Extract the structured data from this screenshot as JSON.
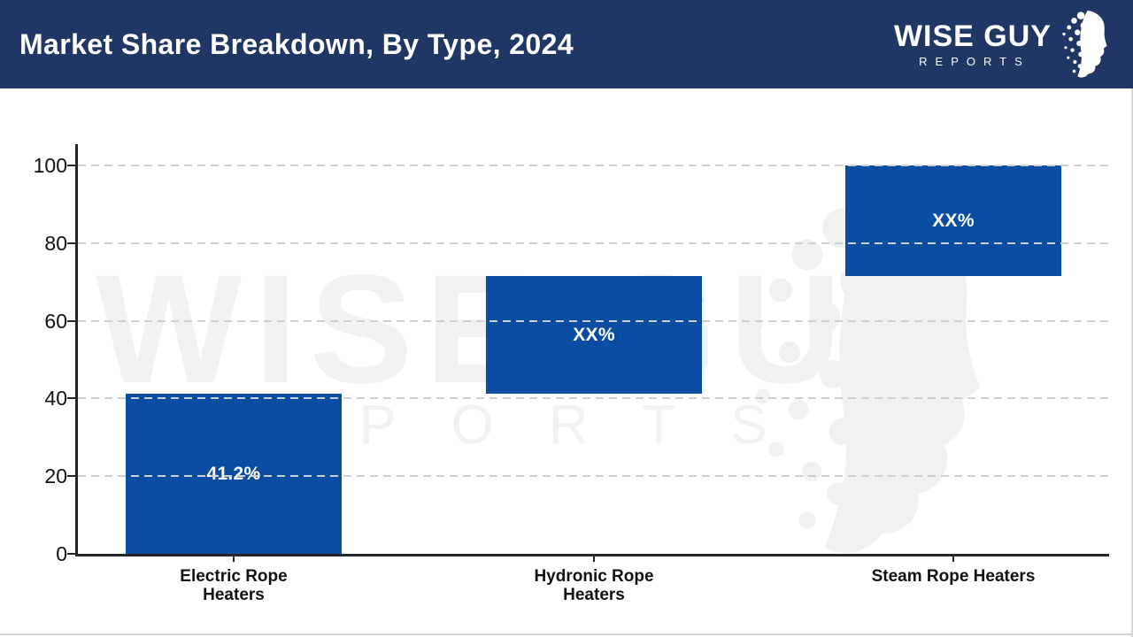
{
  "header": {
    "title": "Market Share Breakdown, By Type, 2024",
    "logo": {
      "line1": "WISE GUY",
      "line2": "REPORTS",
      "icon": "dotted-face-profile"
    }
  },
  "watermark": {
    "line1": "WISE GUY",
    "line2": "REPORTS",
    "icon": "dotted-face-profile"
  },
  "colors": {
    "header_bg": "#203664",
    "header_text": "#ffffff",
    "bar_fill": "#0B4DA2",
    "bar_label_text": "#ffffff",
    "axis": "#262626",
    "tick_label": "#111111",
    "gridline": "#cfcfcf",
    "watermark": "#f2f2f2",
    "border": "#d9d9d9",
    "background": "#ffffff"
  },
  "chart_data": {
    "type": "bar",
    "subtype": "waterfall-style floating bars",
    "title": "Market Share Breakdown, By Type, 2024",
    "categories": [
      [
        "Electric Rope",
        "Heaters"
      ],
      [
        "Hydronic Rope",
        "Heaters"
      ],
      [
        "Steam Rope Heaters"
      ]
    ],
    "bars": [
      {
        "category": "Electric Rope Heaters",
        "label": "41.2%",
        "start": 0,
        "end": 41.2
      },
      {
        "category": "Hydronic Rope Heaters",
        "label": "XX%",
        "start": 41.2,
        "end": 71.5
      },
      {
        "category": "Steam Rope Heaters",
        "label": "XX%",
        "start": 71.5,
        "end": 100
      }
    ],
    "xlabel": "",
    "ylabel": "",
    "ylim": [
      0,
      105.5
    ],
    "yticks": [
      0,
      20,
      40,
      60,
      80,
      100
    ],
    "grid": {
      "horizontal": true,
      "style": "dashed",
      "drawn_on_top_of_bars": true
    },
    "legend": null
  }
}
